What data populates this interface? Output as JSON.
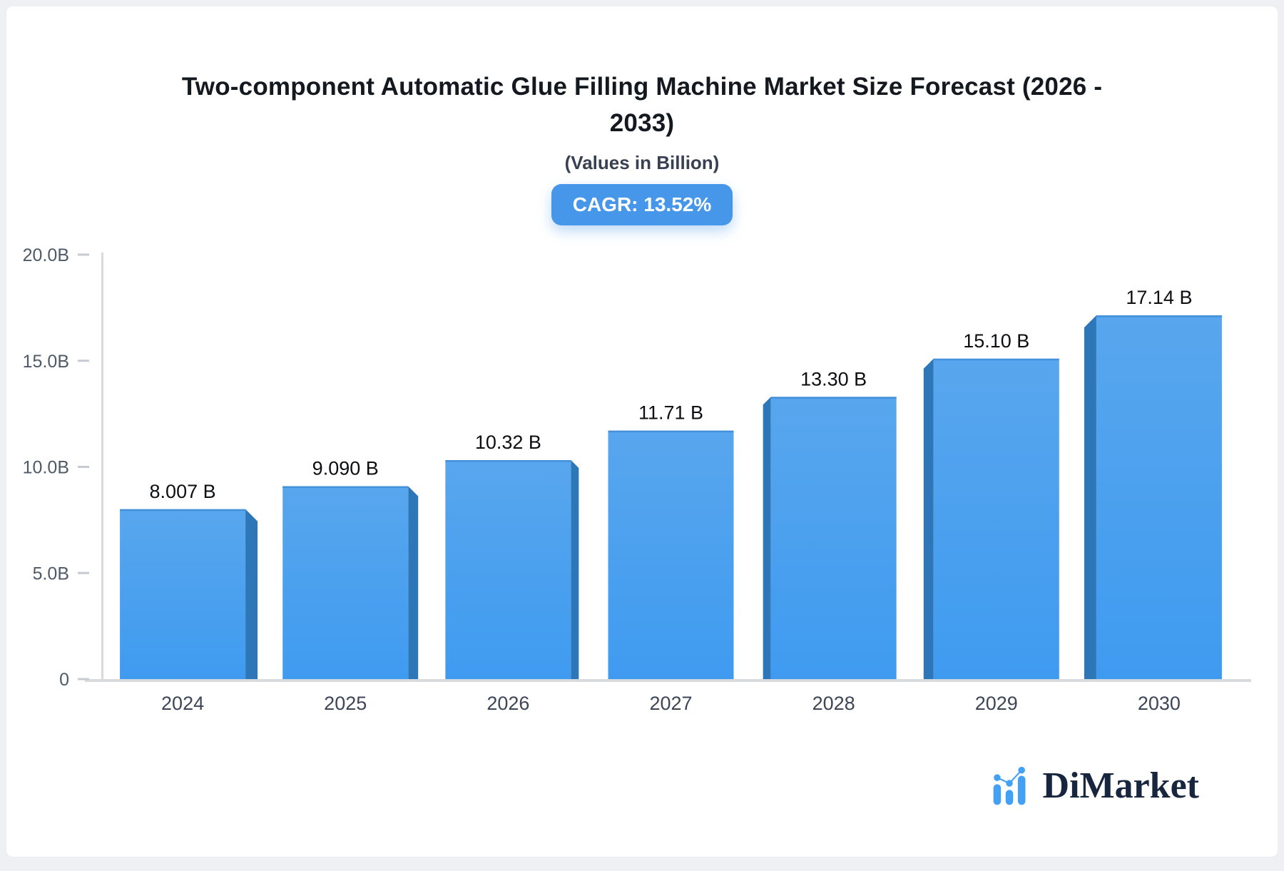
{
  "chart_data": {
    "type": "bar",
    "title": "Two-component Automatic Glue Filling Machine Market Size Forecast (2026 - 2033)",
    "subtitle": "(Values in Billion)",
    "badge": "CAGR: 13.52%",
    "categories": [
      "2024",
      "2025",
      "2026",
      "2027",
      "2028",
      "2029",
      "2030"
    ],
    "values": [
      8.007,
      9.09,
      10.32,
      11.71,
      13.3,
      15.1,
      17.14
    ],
    "value_labels": [
      "8.007 B",
      "9.090 B",
      "10.32 B",
      "11.71 B",
      "13.30 B",
      "15.10 B",
      "17.14 B"
    ],
    "ylim": [
      0,
      20
    ],
    "yticks": [
      0,
      5,
      10,
      15,
      20
    ],
    "ytick_labels": [
      "0",
      "5.0B",
      "10.0B",
      "15.0B",
      "20.0B"
    ],
    "grid": "off",
    "legend": "none",
    "colors": {
      "bar_face_top": "#58a6ed",
      "bar_face_bottom": "#3f9bf0",
      "bar_top_edge": "#4590da",
      "bar_side": "#2d77b8",
      "axis_line": "#d8dade",
      "tick_dash": "#c6cbd2",
      "tick_label": "#4e5a68",
      "value_label": "#0c0e12",
      "category_label": "#3c4656"
    }
  },
  "brand": {
    "name": "DiMarket",
    "icon": "mini-bar-line-logo",
    "icon_color": "#42a0f5"
  }
}
